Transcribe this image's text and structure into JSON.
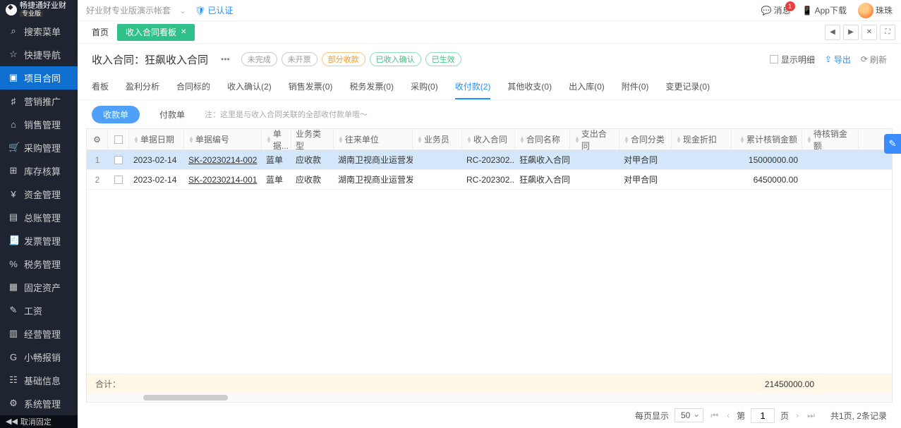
{
  "logo": {
    "brand": "畅捷通好业财",
    "edition": "专业版"
  },
  "sidebar": {
    "items": [
      {
        "icon": "⌕",
        "label": "搜索菜单"
      },
      {
        "icon": "☆",
        "label": "快捷导航"
      },
      {
        "icon": "▣",
        "label": "项目合同",
        "active": true
      },
      {
        "icon": "♯",
        "label": "营销推广"
      },
      {
        "icon": "⌂",
        "label": "销售管理"
      },
      {
        "icon": "🛒",
        "label": "采购管理"
      },
      {
        "icon": "⊞",
        "label": "库存核算"
      },
      {
        "icon": "¥",
        "label": "资金管理"
      },
      {
        "icon": "▤",
        "label": "总账管理"
      },
      {
        "icon": "🧾",
        "label": "发票管理"
      },
      {
        "icon": "%",
        "label": "税务管理"
      },
      {
        "icon": "▦",
        "label": "固定资产"
      },
      {
        "icon": "✎",
        "label": "工资"
      },
      {
        "icon": "▥",
        "label": "经营管理"
      },
      {
        "icon": "G",
        "label": "小畅报销"
      },
      {
        "icon": "☷",
        "label": "基础信息"
      },
      {
        "icon": "⚙",
        "label": "系统管理"
      }
    ],
    "unpin": "取消固定"
  },
  "topbar": {
    "account": "好业财专业版演示帐套",
    "verified": "已认证",
    "msg": "消息",
    "msg_count": "1",
    "app": "App下载",
    "user": "珠珠"
  },
  "tabs": {
    "home": "首页",
    "active": "收入合同看板"
  },
  "title": {
    "prefix": "收入合同：",
    "name": "狂飙收入合同"
  },
  "status_tags": [
    {
      "text": "未完成",
      "cls": "gray"
    },
    {
      "text": "未开票",
      "cls": "gray"
    },
    {
      "text": "部分收款",
      "cls": "orange"
    },
    {
      "text": "已收入确认",
      "cls": "green"
    },
    {
      "text": "已生效",
      "cls": "green"
    }
  ],
  "title_actions": {
    "show_detail": "显示明细",
    "export": "导出",
    "refresh": "刷新"
  },
  "subtabs": [
    {
      "label": "看板"
    },
    {
      "label": "盈利分析"
    },
    {
      "label": "合同标的"
    },
    {
      "label": "收入确认(2)"
    },
    {
      "label": "销售发票(0)"
    },
    {
      "label": "税务发票(0)"
    },
    {
      "label": "采购(0)"
    },
    {
      "label": "收付款(2)",
      "active": true
    },
    {
      "label": "其他收支(0)"
    },
    {
      "label": "出入库(0)"
    },
    {
      "label": "附件(0)"
    },
    {
      "label": "变更记录(0)"
    }
  ],
  "pills": {
    "a": "收款单",
    "b": "付款单",
    "note": "注：这里是与收入合同关联的全部收付款单哦～"
  },
  "columns": {
    "date": "单据日期",
    "num": "单据编号",
    "src": "单据...",
    "btype": "业务类型",
    "party": "往来单位",
    "sales": "业务员",
    "income": "收入合同",
    "cname": "合同名称",
    "expend": "支出合同",
    "ctype": "合同分类",
    "cashdisc": "现金折扣",
    "amt": "累计核销金额",
    "pend": "待核销金额"
  },
  "rows": [
    {
      "idx": "1",
      "date": "2023-02-14",
      "num": "SK-20230214-002",
      "src": "蓝单",
      "btype": "应收款",
      "party": "湖南卫视商业运营发展...",
      "sales": "",
      "income": "RC-202302...",
      "cname": "狂飙收入合同",
      "expend": "",
      "ctype": "对甲合同",
      "cashdisc": "",
      "amt": "15000000.00",
      "sel": true
    },
    {
      "idx": "2",
      "date": "2023-02-14",
      "num": "SK-20230214-001",
      "src": "蓝单",
      "btype": "应收款",
      "party": "湖南卫视商业运营发展...",
      "sales": "",
      "income": "RC-202302...",
      "cname": "狂飙收入合同",
      "expend": "",
      "ctype": "对甲合同",
      "cashdisc": "",
      "amt": "6450000.00",
      "sel": false
    }
  ],
  "footer": {
    "label": "合计：",
    "sum": "21450000.00"
  },
  "pager": {
    "per_page_label": "每页显示",
    "per_page": "50",
    "page_label_pre": "第",
    "page": "1",
    "page_label_post": "页",
    "summary": "共1页, 2条记录"
  }
}
